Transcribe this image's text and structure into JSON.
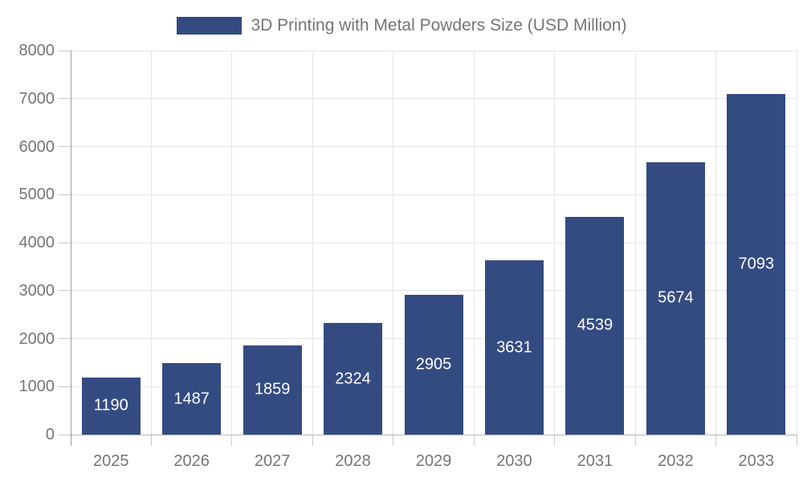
{
  "chart_data": {
    "type": "bar",
    "title": "3D Printing with Metal Powders Size (USD Million)",
    "categories": [
      "2025",
      "2026",
      "2027",
      "2028",
      "2029",
      "2030",
      "2031",
      "2032",
      "2033"
    ],
    "values": [
      1190,
      1487,
      1859,
      2324,
      2905,
      3631,
      4539,
      5674,
      7093
    ],
    "xlabel": "",
    "ylabel": "",
    "ylim": [
      0,
      8000
    ],
    "ytick_step": 1000,
    "grid": true,
    "legend_position": "top-center",
    "value_label_position": "inside-center",
    "colors": {
      "bar": "#344b82",
      "value_text": "#ffffff",
      "axis_text": "#757575",
      "legend_text": "#757575",
      "grid_line": "#e2e4e9",
      "axis_zero_line": "#b4b6bc",
      "axis_line": "#9a9ca3",
      "tick_line": "#c7c9cf",
      "background": "#ffffff"
    }
  }
}
